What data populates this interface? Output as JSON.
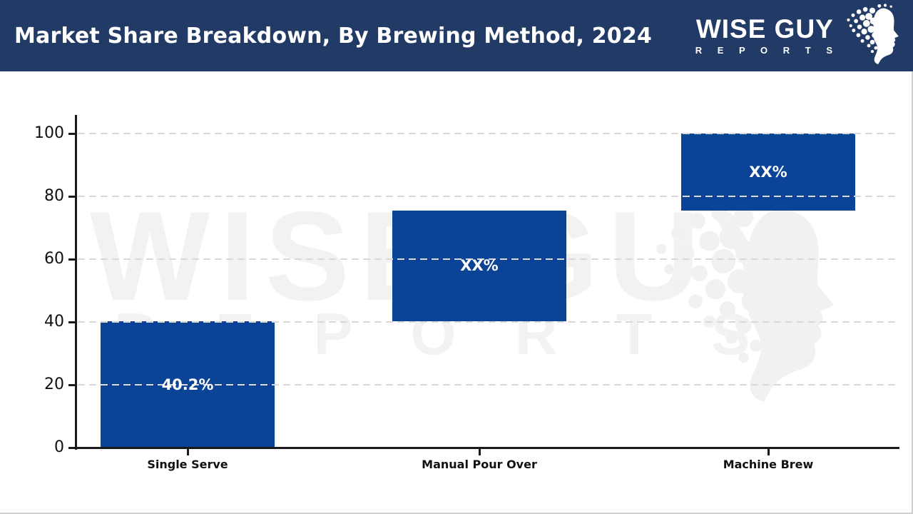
{
  "header": {
    "title": "Market Share Breakdown, By Brewing Method, 2024",
    "logo": {
      "wordmark": "WISE GUY",
      "subtext": "R E P O R T S"
    },
    "bg_color": "#213a66"
  },
  "watermark": {
    "line1": "WISE GUY",
    "line2": "R E P O R T S"
  },
  "chart_data": {
    "type": "bar",
    "variant": "waterfall",
    "title": "Market Share Breakdown, By Brewing Method, 2024",
    "categories": [
      "Single Serve",
      "Manual Pour Over",
      "Machine Brew"
    ],
    "segments": [
      {
        "category": "Single Serve",
        "start": 0,
        "end": 40.2,
        "label": "40.2%"
      },
      {
        "category": "Manual Pour Over",
        "start": 40.2,
        "end": 75.5,
        "label": "XX%"
      },
      {
        "category": "Machine Brew",
        "start": 75.5,
        "end": 100,
        "label": "XX%"
      }
    ],
    "increments": [
      40.2,
      35.3,
      24.5
    ],
    "y_ticks": [
      0,
      20,
      40,
      60,
      80,
      100
    ],
    "ylim": [
      0,
      106
    ],
    "xlabel": "",
    "ylabel": "",
    "grid": "horizontal dashed gridlines drawn over bars",
    "legend": "none",
    "colors": {
      "bar": "#0b4396",
      "bar_label": "#ffffff",
      "axis": "#1a1a1a",
      "gridline": "#d9d9d9",
      "header_bg": "#213a66",
      "watermark": "#f2f2f4"
    }
  }
}
